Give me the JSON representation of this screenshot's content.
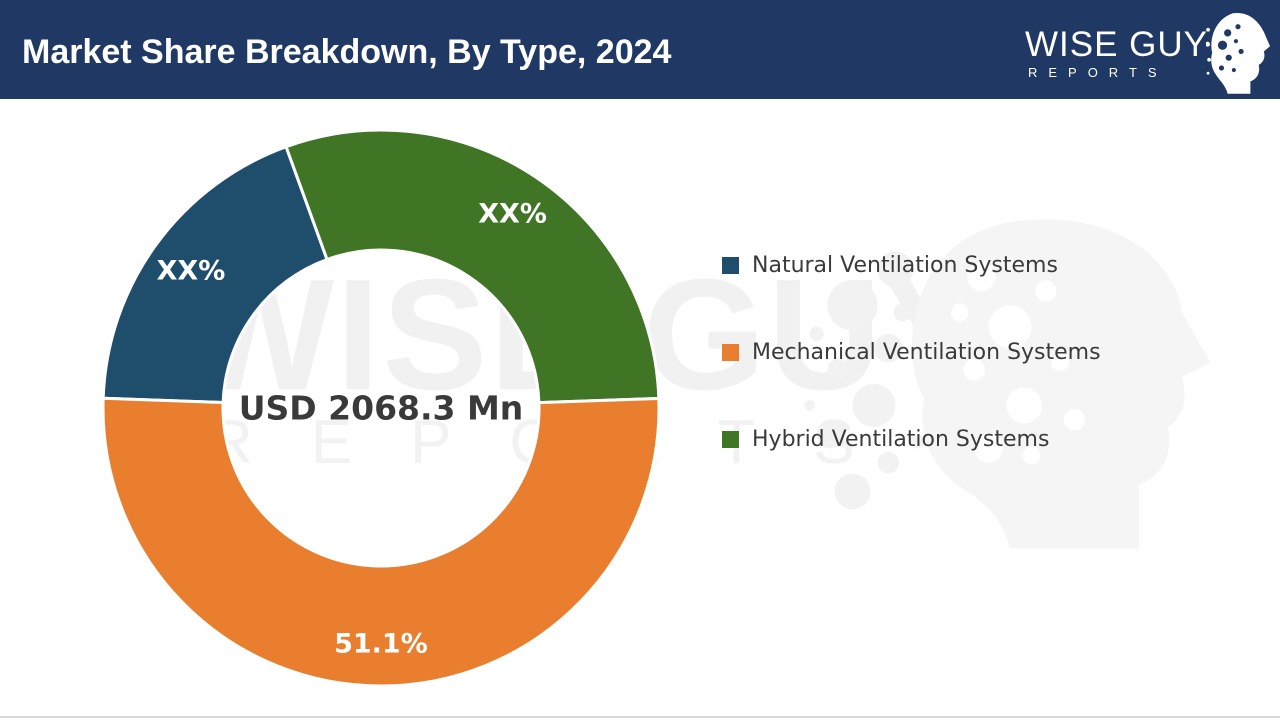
{
  "header": {
    "title": "Market Share Breakdown, By Type, 2024",
    "logo": {
      "line1": "WISE GUY",
      "line2": "REPORTS"
    }
  },
  "watermark": {
    "line1": "WISE GUY",
    "line2": "REPORTS"
  },
  "chart_data": {
    "type": "pie",
    "subtype": "donut",
    "title": "Market Share Breakdown, By Type, 2024",
    "center_label": "USD 2068.3 Mn",
    "start_angle_deg": 182,
    "slices": [
      {
        "name": "Natural Ventilation Systems",
        "label": "XX%",
        "share_pct": 18.9,
        "color": "#1F4E6D"
      },
      {
        "name": "Hybrid Ventilation Systems",
        "label": "XX%",
        "share_pct": 30.0,
        "color": "#3F7524"
      },
      {
        "name": "Mechanical Ventilation Systems",
        "label": "51.1%",
        "share_pct": 51.1,
        "color": "#E87E2E"
      }
    ],
    "legend": [
      {
        "label": "Natural Ventilation Systems",
        "color": "#1F4E6D"
      },
      {
        "label": "Mechanical Ventilation Systems",
        "color": "#E87E2E"
      },
      {
        "label": "Hybrid Ventilation Systems",
        "color": "#3F7524"
      }
    ],
    "legend_position": "right",
    "colors": {
      "header_bg": "#1F3864",
      "text_dark": "#3A3A3A",
      "slice_separator": "#FFFFFF"
    }
  }
}
